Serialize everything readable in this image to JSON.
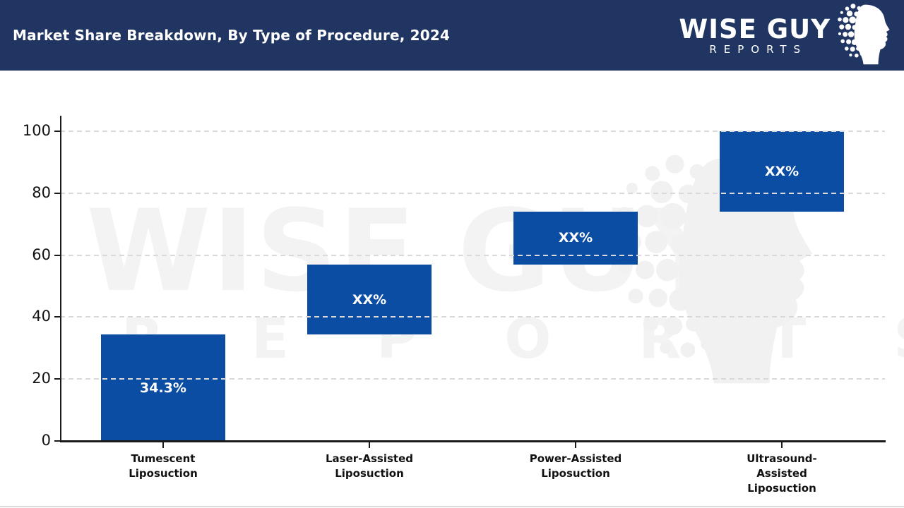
{
  "header": {
    "title": "Market Share Breakdown, By Type of Procedure, 2024",
    "brand": {
      "line1": "WISE GUY",
      "line2": "REPORTS"
    }
  },
  "watermark": {
    "line1": "WISE GUY",
    "line2": "R E P O R T S"
  },
  "colors": {
    "header_bg": "#213563",
    "bar": "#0B4DA2",
    "grid": "#d9d9d9",
    "axis": "#1a1a1a",
    "watermark": "#f3f3f3"
  },
  "chart_data": {
    "type": "bar",
    "subtype": "floating-segment-waterfall",
    "title": "Market Share Breakdown, By Type of Procedure, 2024",
    "categories": [
      "Tumescent Liposuction",
      "Laser-Assisted Liposuction",
      "Power-Assisted Liposuction",
      "Ultrasound-Assisted Liposuction"
    ],
    "category_label_lines": [
      [
        "Tumescent",
        "Liposuction"
      ],
      [
        "Laser-Assisted",
        "Liposuction"
      ],
      [
        "Power-Assisted",
        "Liposuction"
      ],
      [
        "Ultrasound-",
        "Assisted",
        "Liposuction"
      ]
    ],
    "segments": [
      {
        "start": 0,
        "end": 34.3,
        "label": "34.3%"
      },
      {
        "start": 34.3,
        "end": 57,
        "label": "XX%"
      },
      {
        "start": 57,
        "end": 74,
        "label": "XX%"
      },
      {
        "start": 74,
        "end": 100,
        "label": "XX%"
      }
    ],
    "ylim": [
      0,
      100
    ],
    "yticks": [
      0,
      20,
      40,
      60,
      80,
      100
    ],
    "xlabel": "",
    "ylabel": "",
    "grid": "horizontal-dashed",
    "legend": "none",
    "bar_color": "#0B4DA2"
  }
}
